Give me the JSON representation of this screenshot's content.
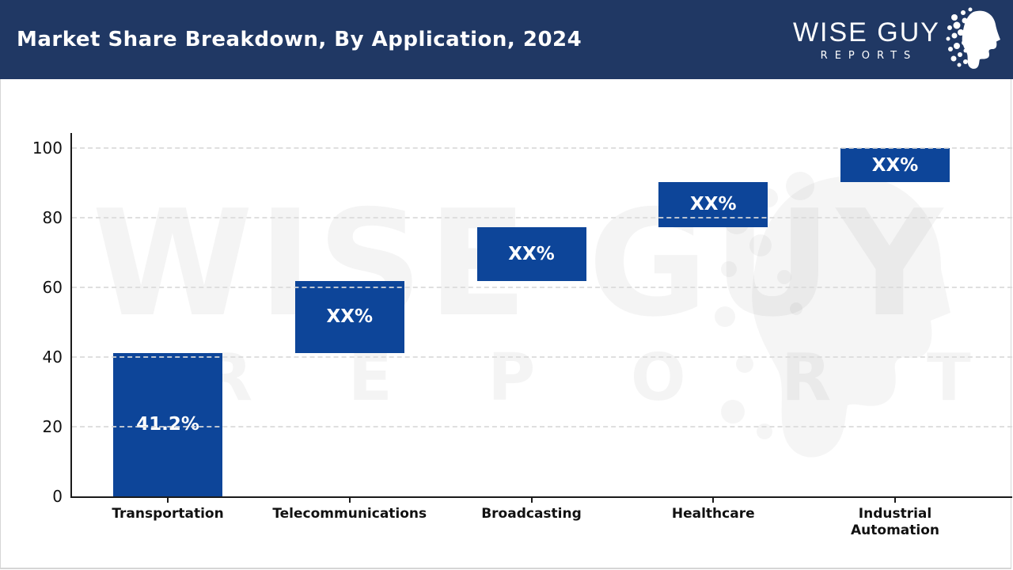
{
  "header": {
    "title": "Market Share Breakdown, By Application, 2024",
    "bg_color": "#203864",
    "logo": {
      "line1": "WISE GUY",
      "line2": "REPORTS"
    }
  },
  "watermark": {
    "line1": "WISE GUY",
    "line2": "REPORTS"
  },
  "chart_data": {
    "type": "bar",
    "subtype": "waterfall",
    "title": "Market Share Breakdown, By Application, 2024",
    "categories": [
      "Transportation",
      "Telecommunications",
      "Broadcasting",
      "Healthcare",
      "Industrial Automation"
    ],
    "series": [
      {
        "name": "Market Share",
        "segment_start": [
          0,
          41.2,
          61.8,
          77.3,
          90.2
        ],
        "segment_end": [
          41.2,
          61.8,
          77.3,
          90.2,
          100
        ]
      }
    ],
    "bar_labels": [
      "41.2%",
      "XX%",
      "XX%",
      "XX%",
      "XX%"
    ],
    "xlabel": "",
    "ylabel": "",
    "ylim": [
      0,
      100
    ],
    "yticks": [
      0,
      20,
      40,
      60,
      80,
      100
    ],
    "grid": "horizontal-dashed",
    "legend": "none",
    "bar_color": "#0d4599",
    "bar_label_color": "#ffffff",
    "axis_color": "#1a1a1a",
    "grid_color": "#d9d9d9"
  }
}
